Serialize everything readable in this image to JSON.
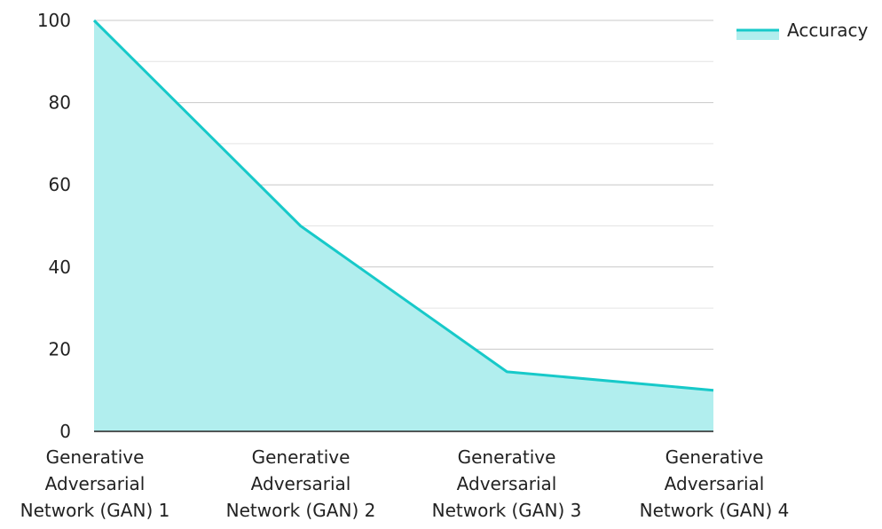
{
  "chart_data": {
    "type": "area",
    "categories": [
      [
        "Generative",
        "Adversarial",
        "Network (GAN) 1"
      ],
      [
        "Generative",
        "Adversarial",
        "Network (GAN) 2"
      ],
      [
        "Generative",
        "Adversarial",
        "Network (GAN) 3"
      ],
      [
        "Generative",
        "Adversarial",
        "Network (GAN) 4"
      ]
    ],
    "series": [
      {
        "name": "Accuracy",
        "values": [
          100,
          50,
          14.5,
          10
        ]
      }
    ],
    "yticks": [
      "0",
      "20",
      "40",
      "60",
      "80",
      "100"
    ],
    "ylim": [
      0,
      100
    ],
    "ytick_step": 20,
    "minor_grid_step": 10,
    "grid": true,
    "legend": "top-right",
    "colors": {
      "line": "#17C9C9",
      "fill": "#B1EEEE",
      "grid": "#C8C8C8",
      "minor_grid": "#E4E4E4",
      "axis": "#222222"
    }
  }
}
